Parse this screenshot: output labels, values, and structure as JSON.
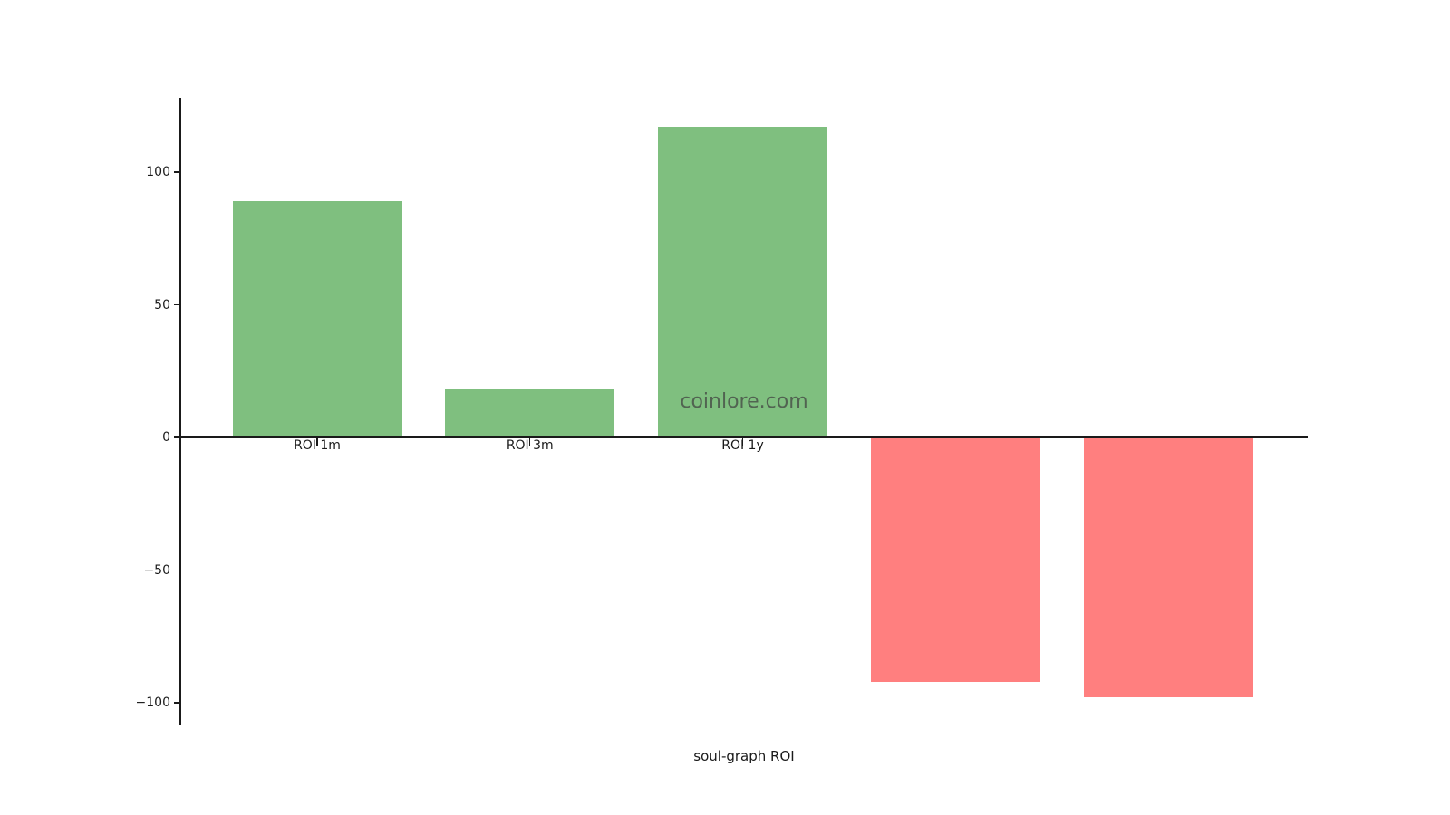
{
  "page": {
    "background": "#ffffff"
  },
  "watermark": {
    "text": "coinlore.com"
  },
  "colors": {
    "positive_bar": "#7fbf7f",
    "negative_bar": "#ff7f7f",
    "axis": "#1a1a1a",
    "watermark_text": "rgba(64,64,64,0.72)"
  },
  "chart_data": {
    "type": "bar",
    "title": "",
    "xlabel": "soul-graph ROI",
    "ylabel": "",
    "categories": [
      "ROI 1m",
      "ROI 3m",
      "ROI 1y",
      "",
      ""
    ],
    "values": [
      89,
      18,
      117,
      -92,
      -98
    ],
    "yticks": [
      100,
      50,
      0,
      -50,
      -100
    ],
    "ylim": [
      -110,
      129
    ],
    "grid": false,
    "legend": null,
    "bar_color_positive": "#7fbf7f",
    "bar_color_negative": "#ff7f7f",
    "note_hidden_ticks": "x tick labels for the two negative bars are covered by the bars and not visible"
  }
}
